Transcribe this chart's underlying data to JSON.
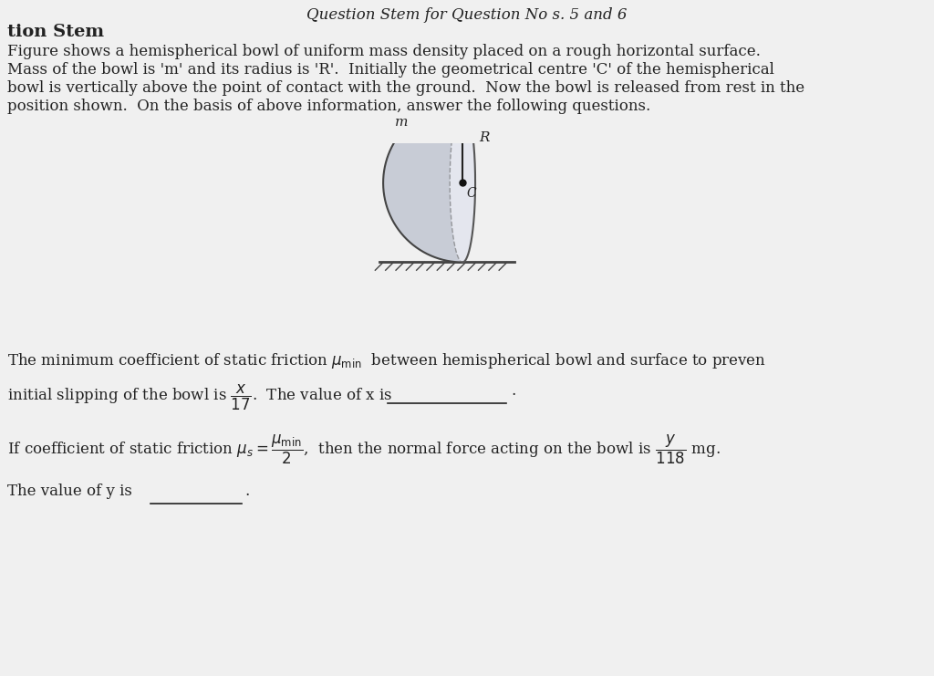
{
  "title": "Question Stem for Question No s. 5 and 6",
  "heading": "tion Stem",
  "bg_color": "#f0f0f0",
  "para_line1": "Figure shows a hemispherical bowl of uniform mass density placed on a rough horizontal surface.",
  "para_line2": "Mass of the bowl is 'm' and its radius is 'R'.  Initially the geometrical centre 'C' of the hemispherical",
  "para_line3": "bowl is vertically above the point of contact with the ground.  Now the bowl is released from rest in the",
  "para_line4": "position shown.  On the basis of above information, answer the following questions.",
  "bowl_fill_color": "#c8ccd6",
  "bowl_edge_color": "#444444",
  "flat_face_color": "#e4e6ee",
  "flat_face_edge": "#555555",
  "ground_color": "#444444",
  "label_m": "m",
  "label_R": "R",
  "label_C": "C",
  "center_dot_color": "#111111",
  "line_color": "#222222",
  "text_color": "#222222",
  "font_size_body": 13,
  "font_size_title": 12,
  "font_size_labels": 11,
  "font_size_diagram": 10
}
